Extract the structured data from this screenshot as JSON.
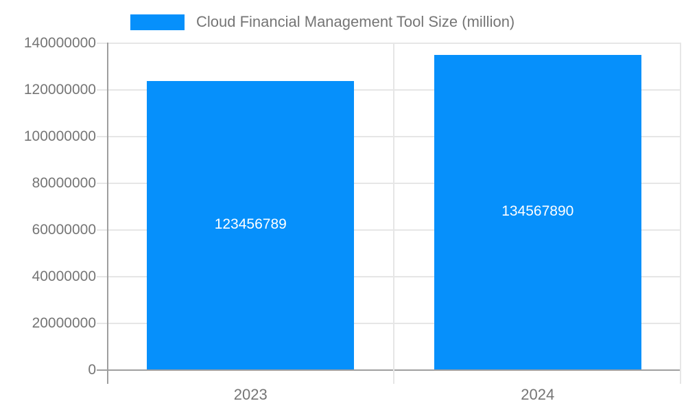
{
  "legend": {
    "label": "Cloud Financial Management Tool Size (million)"
  },
  "chart_data": {
    "type": "bar",
    "title": "Cloud Financial Management Tool Size (million)",
    "categories": [
      "2023",
      "2024"
    ],
    "series": [
      {
        "name": "Cloud Financial Management Tool Size (million)",
        "values": [
          123456789,
          134567890
        ]
      }
    ],
    "values": [
      123456789,
      134567890
    ],
    "value_labels": [
      "123456789",
      "134567890"
    ],
    "xlabel": "",
    "ylabel": "",
    "ylim": [
      0,
      140000000
    ],
    "ytick_step": 20000000,
    "yticks": [
      "0",
      "20000000",
      "40000000",
      "60000000",
      "80000000",
      "100000000",
      "120000000",
      "140000000"
    ],
    "grid": true,
    "legend_position": "top",
    "bar_labels_inside": true
  },
  "colors": {
    "accent": "#0690FB",
    "axis_text": "#757575",
    "axis_line": "#9E9E9E",
    "grid_line": "#E6E6E6",
    "bar_label": "#FFFFFF",
    "background": "#FFFFFF"
  }
}
